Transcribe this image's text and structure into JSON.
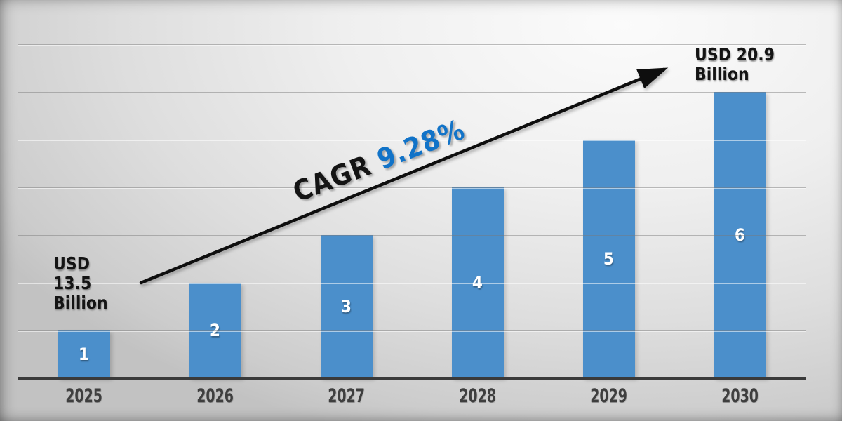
{
  "chart_data": {
    "type": "bar",
    "categories": [
      "2025",
      "2026",
      "2027",
      "2028",
      "2029",
      "2030"
    ],
    "values": [
      1,
      2,
      3,
      4,
      5,
      6
    ],
    "bar_value_labels": [
      "1",
      "2",
      "3",
      "4",
      "5",
      "6"
    ],
    "ylim": [
      0,
      7
    ],
    "gridline_interval": 1,
    "grid": "horizontal",
    "legend": "none",
    "bar_color": "#4b8fcb",
    "bar_label_color": "#ffffff",
    "axis_color": "#3a3a3a",
    "annotations": {
      "start": {
        "lines": [
          "USD",
          "13.5",
          "Billion"
        ],
        "color": "#141414"
      },
      "end": {
        "lines": [
          "USD 20.9",
          "Billion"
        ],
        "color": "#141414"
      },
      "trend": {
        "prefix": "CAGR ",
        "value": "9.28%",
        "prefix_color": "#141414",
        "value_color": "#1173c8",
        "arrow_color": "#0e0e0e"
      }
    }
  }
}
